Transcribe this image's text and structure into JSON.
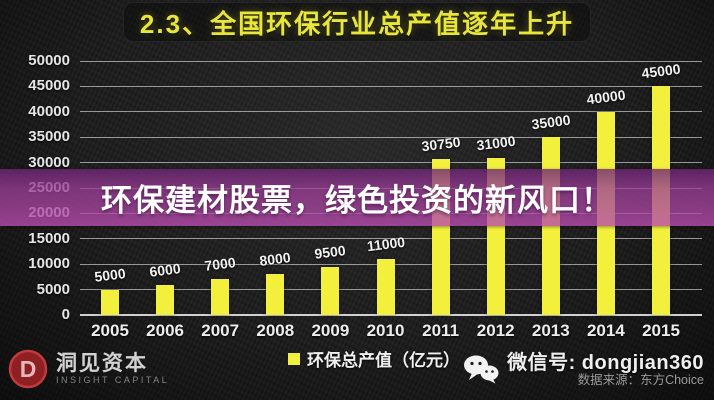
{
  "title": "2.3、全国环保行业总产值逐年上升",
  "banner": {
    "text": "环保建材股票，绿色投资的新风口！"
  },
  "chart_data": {
    "type": "bar",
    "categories": [
      "2005",
      "2006",
      "2007",
      "2008",
      "2009",
      "2010",
      "2011",
      "2012",
      "2013",
      "2014",
      "2015"
    ],
    "values": [
      5000,
      6000,
      7000,
      8000,
      9500,
      11000,
      30750,
      31000,
      35000,
      40000,
      45000
    ],
    "title": "2.3、全国环保行业总产值逐年上升",
    "xlabel": "",
    "ylabel": "",
    "ylim": [
      0,
      50000
    ],
    "ytick_step": 5000,
    "grid": true,
    "bar_color": "#f3ef3d",
    "legend_entries": [
      "环保总产值（亿元）"
    ],
    "legend_position": "bottom",
    "data_labels": true
  },
  "legend": {
    "label": "环保总产值（亿元）"
  },
  "footer": {
    "brand": {
      "logo_letter": "D",
      "name": "洞见资本",
      "subtitle": "INSIGHT CAPITAL"
    },
    "wechat_label": "微信号: dongjian360",
    "source": "数据来源：东方Choice"
  },
  "colors": {
    "background": "#1b1b1b",
    "bar": "#f3ef3d",
    "title_text": "#e8e63a",
    "banner_overlay": "#9c3e98",
    "banner_text": "#ffffff",
    "gridline": "#e4e4e4",
    "logo_red": "#b5302f"
  }
}
